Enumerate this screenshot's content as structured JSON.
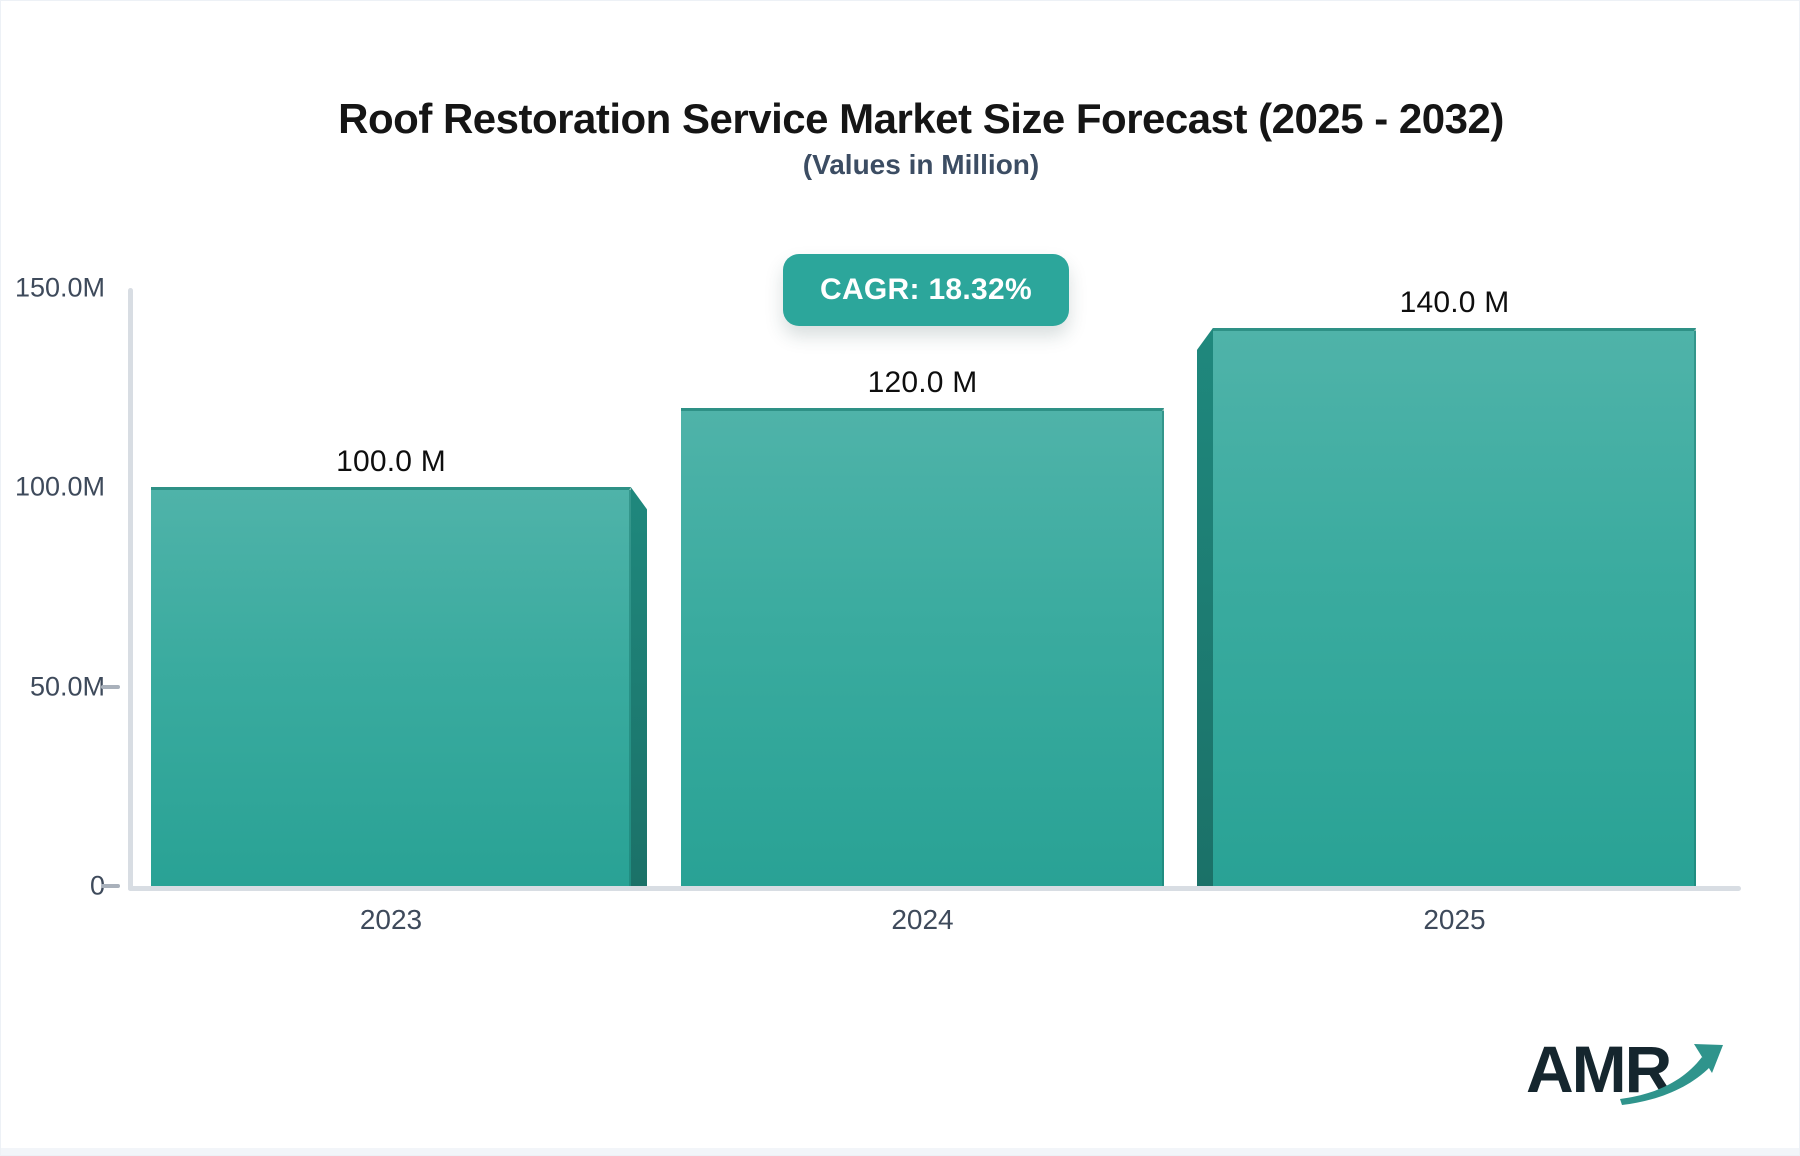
{
  "page": {
    "title": "Roof Restoration Service Market Size Forecast (2025 - 2032)",
    "subtitle": "(Values in Million)"
  },
  "badge": {
    "label": "CAGR: 18.32%",
    "bg_color": "#2ca69b",
    "text_color": "#ffffff"
  },
  "chart_data": {
    "type": "bar",
    "title": "Roof Restoration Service Market Size Forecast (2025 - 2032)",
    "subtitle": "(Values in Million)",
    "cagr": "18.32%",
    "categories": [
      "2023",
      "2024",
      "2025"
    ],
    "values": [
      100.0,
      120.0,
      140.0
    ],
    "value_labels": [
      "100.0 M",
      "120.0 M",
      "140.0 M"
    ],
    "unit": "Million",
    "ylim": [
      0,
      150
    ],
    "yticks_top_to_bottom": [
      150,
      100,
      50,
      0
    ],
    "ytick_labels_top_to_bottom": [
      "150.0M",
      "100.0M",
      "50.0M",
      "0"
    ],
    "grid": false,
    "legend": false,
    "bar_gradient_top": "#4fb3a9",
    "bar_gradient_bottom": "#29a295",
    "bar_side_face_color": "#1d7a70",
    "bar_top_edge_color": "#2e9186",
    "axis_line_color": "#d8dde3",
    "axis_label_color": "#3e4a5b",
    "value_label_color": "#0e0e0e"
  },
  "logo": {
    "text": "AMR",
    "text_color": "#15262e",
    "arrow_color": "#2f948c",
    "arrow_icon": "trend-up-arrow"
  }
}
